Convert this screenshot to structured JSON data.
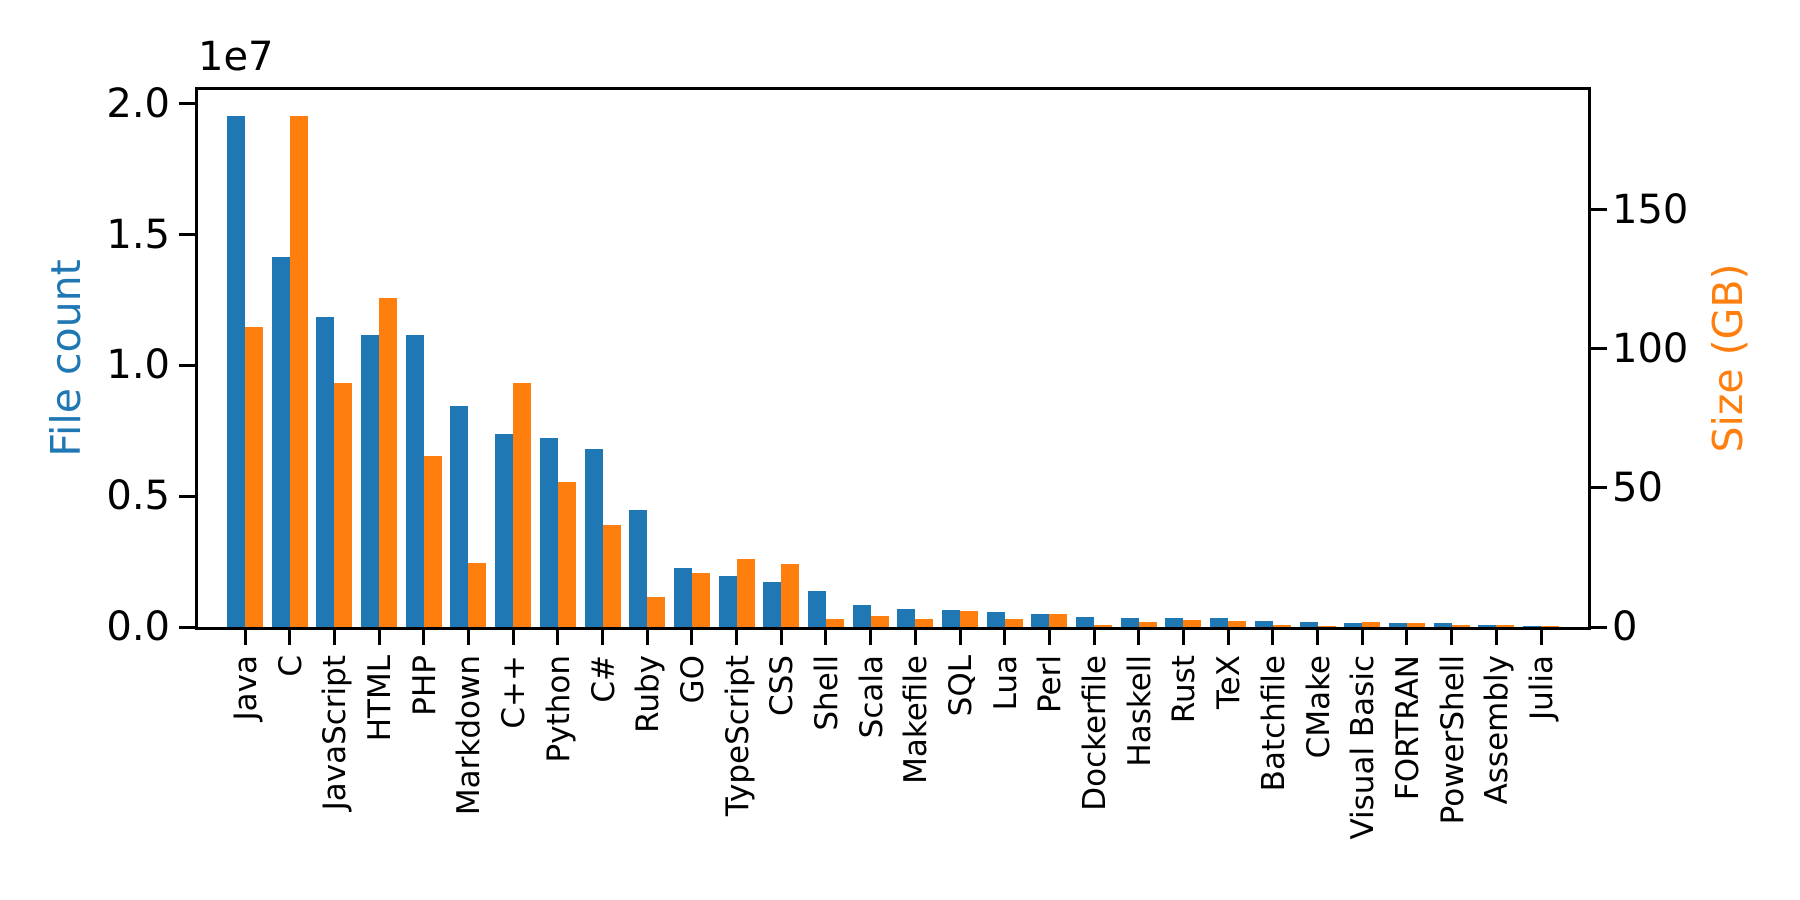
{
  "chart_data": {
    "type": "bar",
    "title": "",
    "categories": [
      "Java",
      "C",
      "JavaScript",
      "HTML",
      "PHP",
      "Markdown",
      "C++",
      "Python",
      "C#",
      "Ruby",
      "GO",
      "TypeScript",
      "CSS",
      "Shell",
      "Scala",
      "Makefile",
      "SQL",
      "Lua",
      "Perl",
      "Dockerfile",
      "Haskell",
      "Rust",
      "TeX",
      "Batchfile",
      "CMake",
      "Visual Basic",
      "FORTRAN",
      "PowerShell",
      "Assembly",
      "Julia"
    ],
    "series": [
      {
        "name": "File count",
        "axis": "left",
        "color": "#1f77b4",
        "values": [
          19548190,
          14143113,
          11839883,
          11178557,
          11177610,
          8464626,
          7380520,
          7226626,
          6811652,
          4473331,
          2265436,
          1940406,
          1734406,
          1385648,
          835755,
          679430,
          656671,
          578554,
          497949,
          366505,
          340380,
          327431,
          337338,
          236945,
          175282,
          155652,
          142038,
          136846,
          82905,
          58317
        ]
      },
      {
        "name": "Size (GB)",
        "axis": "right",
        "color": "#ff7f0e",
        "values": [
          107.7,
          183.83,
          87.82,
          118.12,
          61.41,
          23.09,
          87.73,
          52.03,
          36.83,
          10.95,
          19.28,
          24.59,
          22.67,
          3.01,
          3.87,
          2.92,
          5.67,
          2.81,
          4.7,
          0.71,
          1.85,
          2.68,
          2.15,
          0.7,
          0.54,
          1.91,
          1.62,
          0.69,
          0.78,
          0.29
        ]
      }
    ],
    "left_axis": {
      "label": "File count",
      "color": "#1f77b4",
      "offset_text": "1e7",
      "tick_values": [
        0,
        5000000,
        10000000,
        15000000,
        20000000
      ],
      "tick_labels": [
        "0.0",
        "0.5",
        "1.0",
        "1.5",
        "2.0"
      ],
      "ylim": [
        0,
        20525600
      ]
    },
    "right_axis": {
      "label": "Size (GB)",
      "color": "#ff7f0e",
      "tick_values": [
        0,
        50,
        100,
        150
      ],
      "tick_labels": [
        "0",
        "50",
        "100",
        "150"
      ],
      "ylim": [
        0,
        193.0
      ]
    },
    "xlabel": "",
    "grid": false,
    "legend": "none",
    "bar_width_fraction": 0.4,
    "x_tick_rotation_deg": 90
  }
}
